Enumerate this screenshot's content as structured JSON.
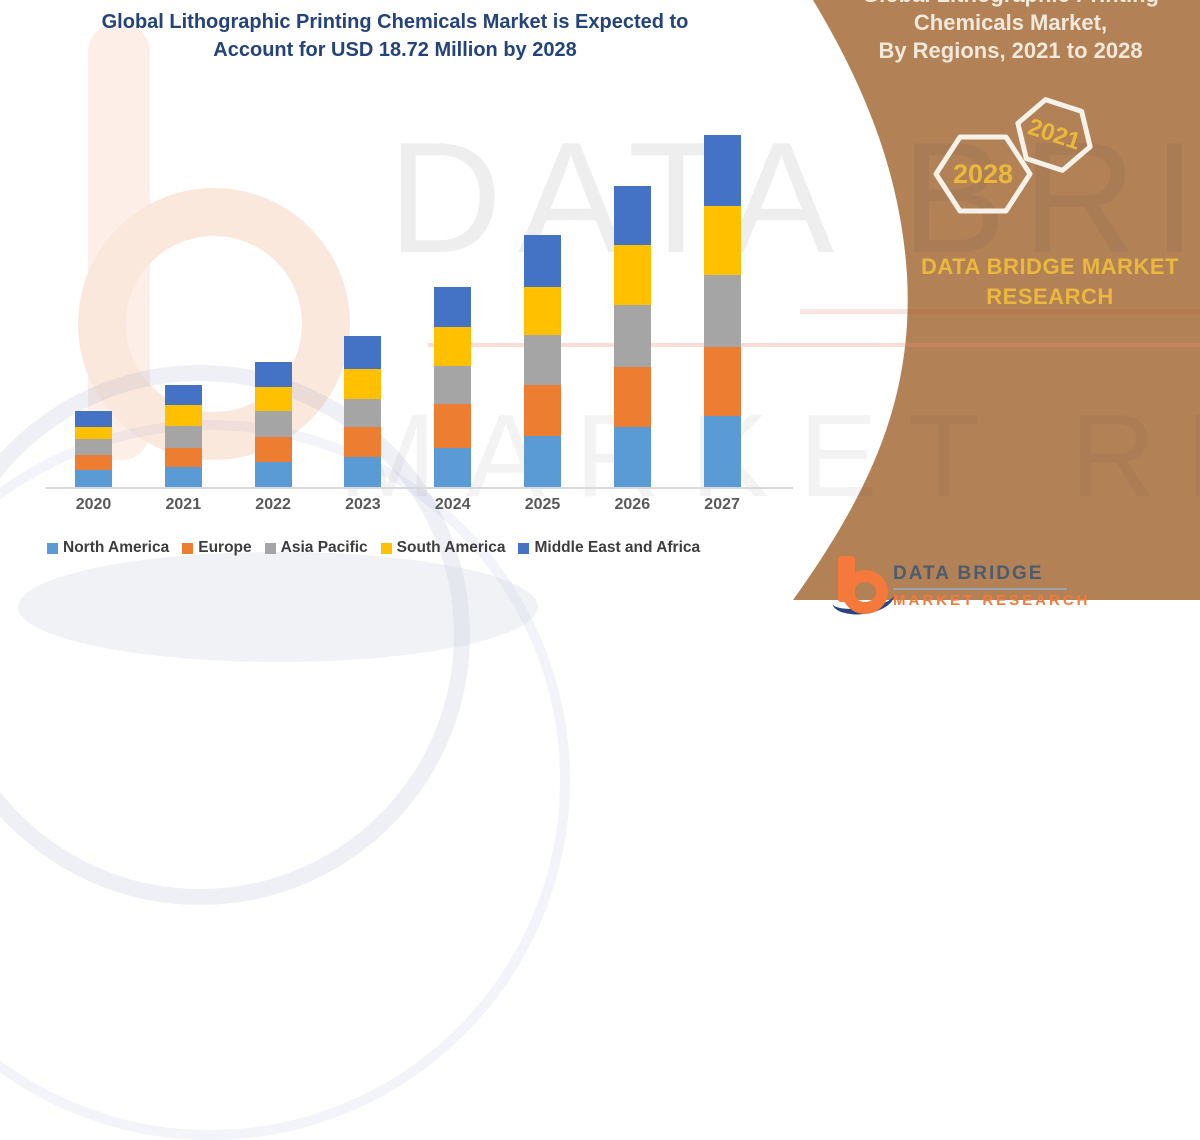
{
  "page": {
    "title_line1": "Global Lithographic Printing Chemicals Market is Expected to",
    "title_line2": "Account for USD 18.72 Million by 2028"
  },
  "side_panel": {
    "heading_clipped_line": "Global Lithographic Printing",
    "heading_line2": "Chemicals Market,",
    "heading_line3": "By Regions, 2021 to 2028",
    "hexagons": [
      {
        "year": "2028"
      },
      {
        "year": "2021"
      }
    ],
    "brand_line1": "DATA BRIDGE MARKET",
    "brand_line2": "RESEARCH"
  },
  "watermark": {
    "line1": "DATA BRIDGE",
    "line2": "MARKET RESEARCH"
  },
  "footer_logo": {
    "name": "DATA BRIDGE",
    "subtitle": "MARKET RESEARCH"
  },
  "chart_data": {
    "type": "bar",
    "stacked": true,
    "title": "Global Lithographic Printing Chemicals Market is Expected to Account for USD 18.72 Million by 2028",
    "categories": [
      "2020",
      "2021",
      "2022",
      "2023",
      "2024",
      "2025",
      "2026",
      "2027"
    ],
    "series": [
      {
        "name": "North America",
        "color": "#5B9BD5",
        "values": [
          0.69,
          0.8,
          0.99,
          1.19,
          1.56,
          2.02,
          2.39,
          2.81
        ]
      },
      {
        "name": "Europe",
        "color": "#ED7D31",
        "values": [
          0.6,
          0.76,
          0.99,
          1.19,
          1.75,
          2.03,
          2.39,
          2.76
        ]
      },
      {
        "name": "Asia Pacific",
        "color": "#A5A5A5",
        "values": [
          0.6,
          0.86,
          1.06,
          1.13,
          1.52,
          1.99,
          2.45,
          2.85
        ]
      },
      {
        "name": "South America",
        "color": "#FFC000",
        "values": [
          0.5,
          0.86,
          0.93,
          1.19,
          1.52,
          1.92,
          2.39,
          2.74
        ]
      },
      {
        "name": "Middle East and Africa",
        "color": "#4472C4",
        "values": [
          0.62,
          0.77,
          1.02,
          1.3,
          1.62,
          2.06,
          2.37,
          2.84
        ]
      }
    ],
    "stack_order_bottom_to_top": [
      "North America",
      "Europe",
      "Asia Pacific",
      "South America",
      "Middle East and Africa"
    ],
    "value_axis_visible": false,
    "gridlines": false,
    "legend_position": "bottom",
    "note": "No value axis is shown; values are relative stack heights estimated from the bars (totals rise ~3 units in 2020 to ~14 units in 2027)."
  },
  "colors": {
    "panel_brown": "#B28156",
    "title_navy": "#23437A",
    "gold": "#E9B83D",
    "cream": "#F2E9DB",
    "axis_gray": "#D9D9D9",
    "xlabel_gray": "#595959",
    "legend_text": "#3D3D3D",
    "logo_orange": "#F4793B",
    "logo_slate": "#4D5C6E"
  }
}
